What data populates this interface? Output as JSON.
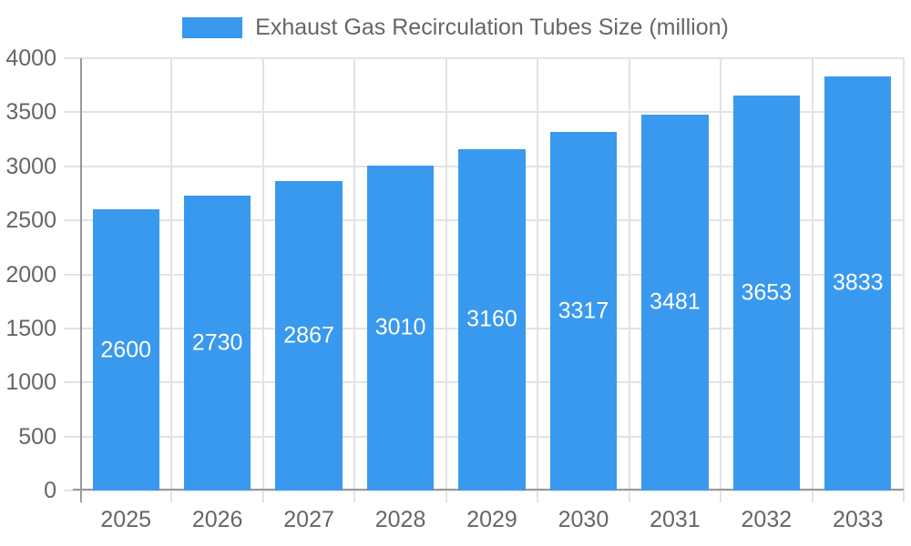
{
  "legend": {
    "label": "Exhaust Gas Recirculation Tubes Size (million)"
  },
  "colors": {
    "bar": "#3999ee",
    "grid": "#e3e3e3",
    "axis": "#999999",
    "tick_text": "#666666",
    "value_text": "#ffffff",
    "background": "#ffffff"
  },
  "chart_data": {
    "type": "bar",
    "title": "",
    "legend_entries": [
      "Exhaust Gas Recirculation Tubes Size (million)"
    ],
    "legend_position": "top-center",
    "categories": [
      "2025",
      "2026",
      "2027",
      "2028",
      "2029",
      "2030",
      "2031",
      "2032",
      "2033"
    ],
    "series": [
      {
        "name": "Exhaust Gas Recirculation Tubes Size (million)",
        "values": [
          2600,
          2730,
          2867,
          3010,
          3160,
          3317,
          3481,
          3653,
          3833
        ]
      }
    ],
    "xlabel": "",
    "ylabel": "",
    "ylim": [
      0,
      4000
    ],
    "ytick_step": 500,
    "yticks": [
      0,
      500,
      1000,
      1500,
      2000,
      2500,
      3000,
      3500,
      4000
    ],
    "grid": true,
    "value_labels": "inside-center",
    "bar_width_fraction": 0.73
  }
}
